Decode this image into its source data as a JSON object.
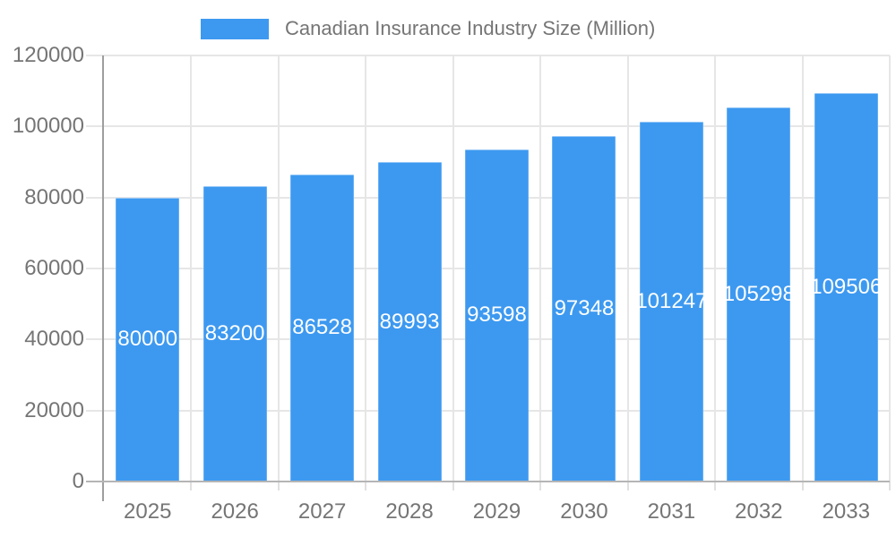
{
  "chart_data": {
    "type": "bar",
    "title": "Canadian Insurance Industry Size (Million)",
    "series": [
      {
        "name": "Canadian Insurance Industry Size (Million)",
        "values": [
          80000,
          83200,
          86528,
          89993,
          93598,
          97348,
          101247,
          105298,
          109506
        ]
      }
    ],
    "categories": [
      "2025",
      "2026",
      "2027",
      "2028",
      "2029",
      "2030",
      "2031",
      "2032",
      "2033"
    ],
    "values": [
      80000,
      83200,
      86528,
      89993,
      93598,
      97348,
      101247,
      105298,
      109506
    ],
    "value_labels": [
      "80000",
      "83200",
      "86528",
      "89993",
      "93598",
      "97348",
      "101247",
      "105298",
      "109506"
    ],
    "xlabel": "",
    "ylabel": "",
    "ylim": [
      0,
      120000
    ],
    "yticks": [
      0,
      20000,
      40000,
      60000,
      80000,
      100000,
      120000
    ],
    "grid": "on",
    "legend_position": "top",
    "colors": {
      "bar": "#3d99f0",
      "grid": "#e6e6e6",
      "tick": "#e0e0e0",
      "axis_line": "#9e9e9e",
      "baseline": "#b5b5b5",
      "text": "#757575",
      "value_label": "#ffffff"
    }
  }
}
